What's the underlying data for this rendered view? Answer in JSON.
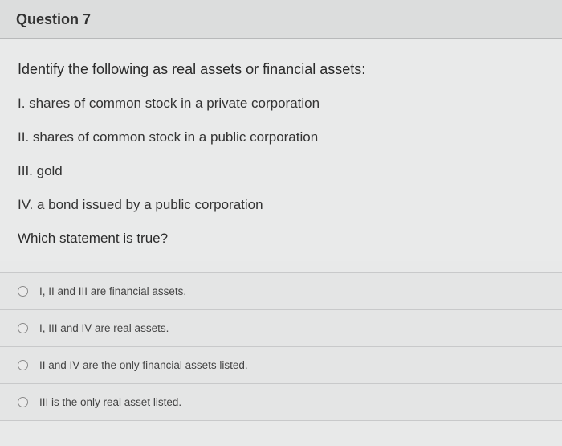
{
  "question": {
    "header": "Question 7",
    "prompt": "Identify the following as real assets or financial assets:",
    "items": [
      "I.  shares of common stock in a private corporation",
      "II.  shares of common stock in a public corporation",
      "III.  gold",
      "IV.  a bond issued by a public corporation"
    ],
    "which": "Which statement is true?",
    "options": [
      "I, II and III are financial assets.",
      "I, III and IV are real assets.",
      "II and IV are the only financial assets listed.",
      "III is the only real asset listed."
    ]
  },
  "styles": {
    "background_color": "#e8e9e9",
    "header_bg": "#dcdddd",
    "border_color": "#b8b9ba",
    "text_color": "#333",
    "option_border": "#c8c9ca"
  }
}
